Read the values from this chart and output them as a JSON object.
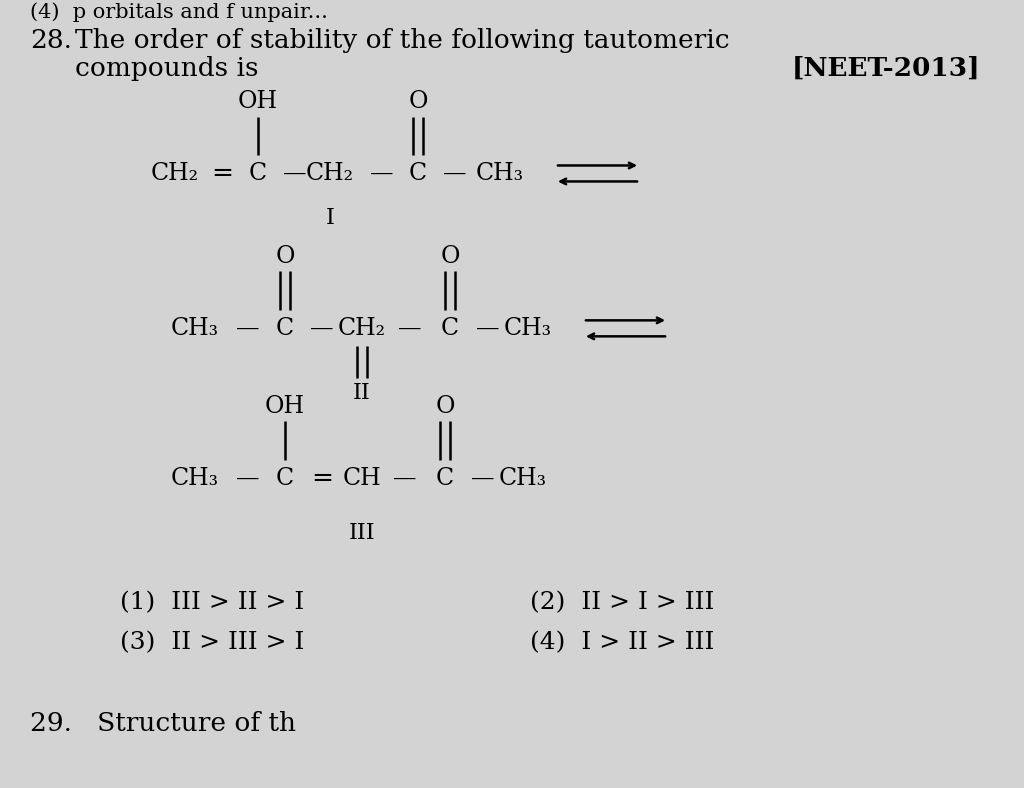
{
  "background_color": "#d3d3d3",
  "title_number": "28.",
  "title_text": "The order of stability of the following tautomeric",
  "title_text2": "compounds is",
  "neet_label": "[NEET-2013]",
  "options": [
    "(1)  III > II > I",
    "(3)  II > III > I",
    "(2)  II > I > III",
    "(4)  I > II > III"
  ],
  "footer_text": "29.   Structure of th",
  "top_text": "(4)  p orbitals and f unpair...",
  "font_size_main": 19,
  "font_size_options": 18,
  "font_size_chem": 17
}
